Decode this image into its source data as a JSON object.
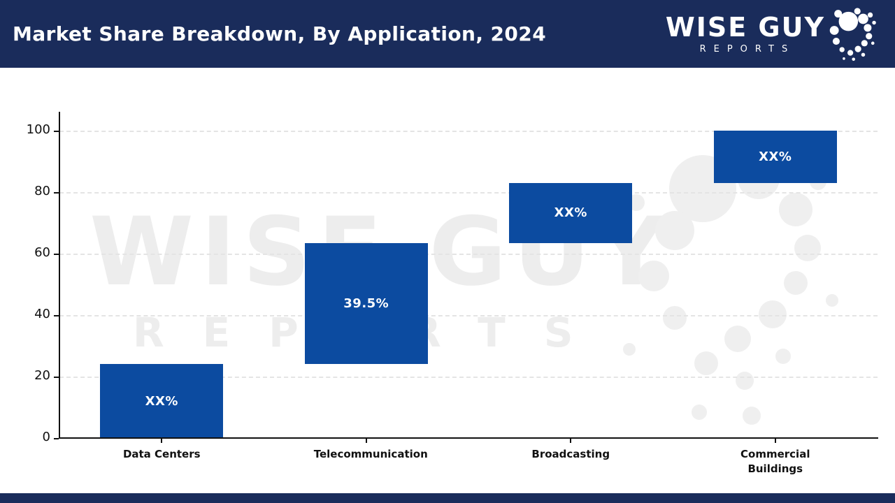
{
  "header": {
    "title": "Market Share Breakdown, By Application, 2024",
    "logo": {
      "line1": "WISE GUY",
      "line2": "REPORTS"
    }
  },
  "watermark": {
    "line1": "WISE GUY",
    "line2": "REPORTS"
  },
  "colors": {
    "header_bg": "#1a2c5b",
    "footer_bg": "#1a2c5b",
    "bar": "#0c4ba0",
    "bar_label": "#ffffff",
    "watermark": "#ededed",
    "grid": "#e4e4e4",
    "axis": "#111111"
  },
  "chart_data": {
    "type": "bar",
    "variant": "floating-waterfall",
    "title": "Market Share Breakdown, By Application, 2024",
    "xlabel": "",
    "ylabel": "",
    "ylim": [
      0,
      100
    ],
    "yticks": [
      0,
      20,
      40,
      60,
      80,
      100
    ],
    "grid": "horizontal-dashed",
    "legend": "none",
    "categories": [
      "Data Centers",
      "Telecommunication",
      "Broadcasting",
      "Commercial Buildings"
    ],
    "segments": [
      {
        "category": "Data Centers",
        "start": 0,
        "end": 24,
        "value": 24,
        "label": "XX%"
      },
      {
        "category": "Telecommunication",
        "start": 24,
        "end": 63.5,
        "value": 39.5,
        "label": "39.5%"
      },
      {
        "category": "Broadcasting",
        "start": 63.5,
        "end": 83,
        "value": 19.5,
        "label": "XX%"
      },
      {
        "category": "Commercial Buildings",
        "start": 83,
        "end": 100,
        "value": 17,
        "label": "XX%"
      }
    ]
  }
}
